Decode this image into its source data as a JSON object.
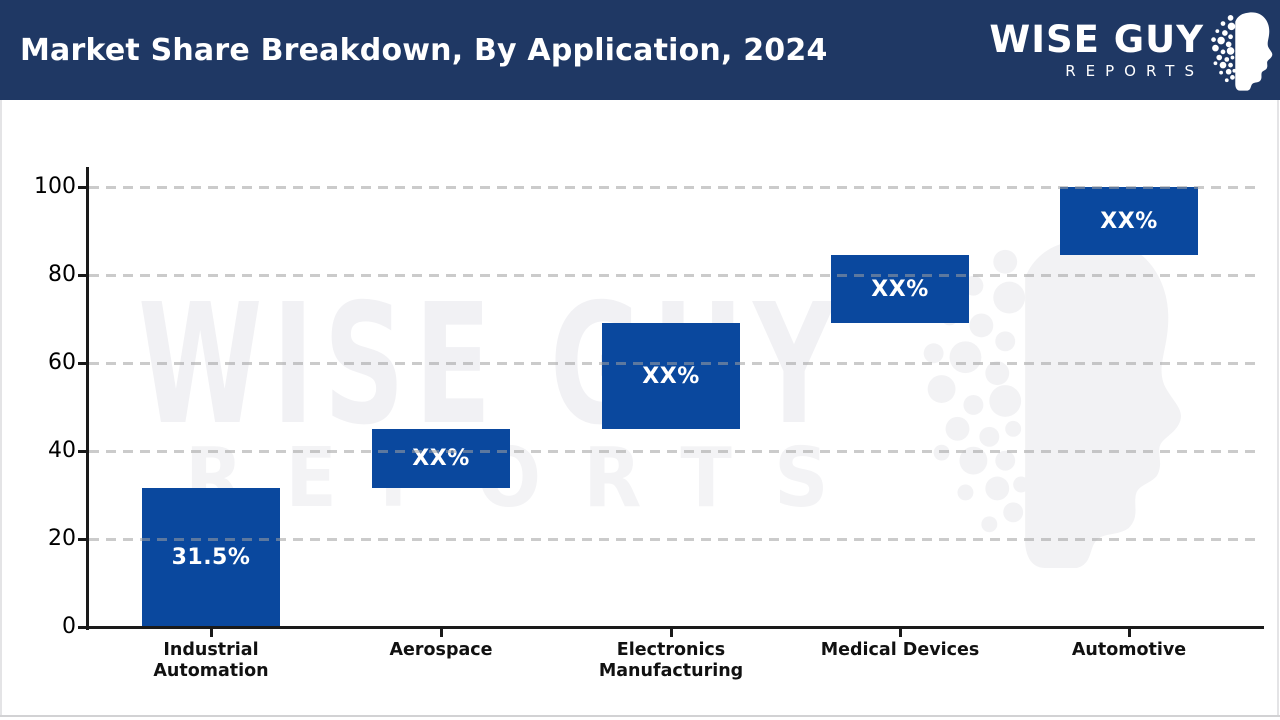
{
  "header": {
    "title": "Market Share Breakdown, By Application, 2024",
    "logo": {
      "line1": "WISE GUY",
      "line2": "REPORTS"
    }
  },
  "watermark": {
    "line1": "WISE GUY",
    "line2": "REPORTS"
  },
  "colors": {
    "header_bg": "#1f3864",
    "bar": "#0a489e",
    "grid": "rgba(160,160,160,0.55)",
    "axis": "#1a1a1a",
    "watermark": "#f2f2f4"
  },
  "chart_data": {
    "type": "bar",
    "subtype": "waterfall",
    "title": "Market Share Breakdown, By Application, 2024",
    "xlabel": "",
    "ylabel": "",
    "ylim": [
      0,
      105
    ],
    "y_ticks": [
      0,
      20,
      40,
      60,
      80,
      100
    ],
    "grid": "horizontal-dashed",
    "legend": "none",
    "bar_color": "#0a489e",
    "bar_label_color": "#ffffff",
    "categories": [
      "Industrial Automation",
      "Aerospace",
      "Electronics Manufacturing",
      "Medical Devices",
      "Automotive"
    ],
    "segments": [
      {
        "category": "Industrial Automation",
        "tick_label": "Industrial\nAutomation",
        "start": 0,
        "end": 31.5,
        "value": 31.5,
        "label": "31.5%"
      },
      {
        "category": "Aerospace",
        "tick_label": "Aerospace",
        "start": 31.5,
        "end": 45,
        "value": 13.5,
        "label": "XX%"
      },
      {
        "category": "Electronics Manufacturing",
        "tick_label": "Electronics\nManufacturing",
        "start": 45,
        "end": 69,
        "value": 24,
        "label": "XX%"
      },
      {
        "category": "Medical Devices",
        "tick_label": "Medical Devices",
        "start": 69,
        "end": 84.5,
        "value": 15.5,
        "label": "XX%"
      },
      {
        "category": "Automotive",
        "tick_label": "Automotive",
        "start": 84.5,
        "end": 100,
        "value": 15.5,
        "label": "XX%"
      }
    ]
  }
}
